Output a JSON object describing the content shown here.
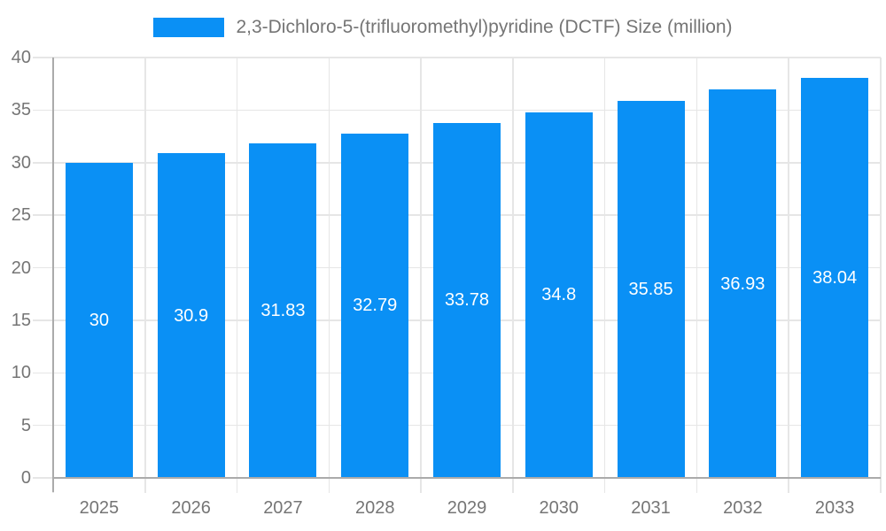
{
  "chart_data": {
    "type": "bar",
    "title": "2,3-Dichloro-5-(trifluoromethyl)pyridine (DCTF) Size (million)",
    "legend": {
      "position": "top",
      "entries": [
        "2,3-Dichloro-5-(trifluoromethyl)pyridine (DCTF) Size (million)"
      ]
    },
    "categories": [
      "2025",
      "2026",
      "2027",
      "2028",
      "2029",
      "2030",
      "2031",
      "2032",
      "2033"
    ],
    "values": [
      30,
      30.9,
      31.83,
      32.79,
      33.78,
      34.8,
      35.85,
      36.93,
      38.04
    ],
    "value_labels": [
      "30",
      "30.9",
      "31.83",
      "32.79",
      "33.78",
      "34.8",
      "35.85",
      "36.93",
      "38.04"
    ],
    "xlabel": "",
    "ylabel": "",
    "ylim": [
      0,
      40
    ],
    "yticks": [
      0,
      5,
      10,
      15,
      20,
      25,
      30,
      35,
      40
    ],
    "grid": true,
    "colors": {
      "bar": "#0a90f5",
      "grid": "#e6e6e6",
      "axis": "#ababab",
      "tick_text": "#757575",
      "value_label_text": "#ffffff",
      "background": "#ffffff"
    }
  }
}
